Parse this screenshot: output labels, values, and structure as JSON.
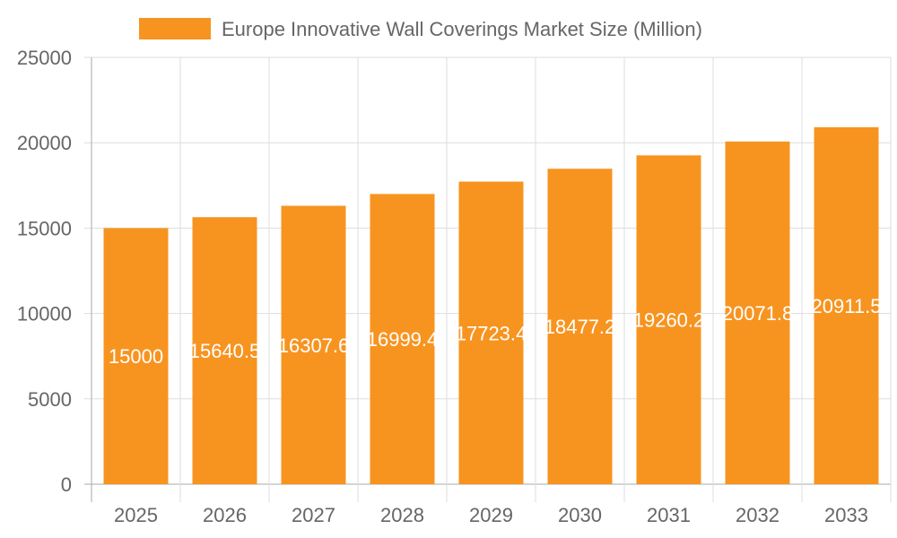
{
  "chart_data": {
    "type": "bar",
    "categories": [
      "2025",
      "2026",
      "2027",
      "2028",
      "2029",
      "2030",
      "2031",
      "2032",
      "2033"
    ],
    "series": [
      {
        "name": "Europe Innovative Wall Coverings Market Size (Million)",
        "values": [
          15000,
          15640.5,
          16307.6,
          16999.4,
          17723.4,
          18477.2,
          19260.2,
          20071.8,
          20911.5
        ]
      }
    ],
    "data_labels": [
      "15000",
      "15640.5",
      "16307.6",
      "16999.4",
      "17723.4",
      "18477.2",
      "19260.2",
      "20071.8",
      "20911.5"
    ],
    "yticks": [
      "0",
      "5000",
      "10000",
      "15000",
      "20000",
      "25000"
    ],
    "ylim": [
      0,
      25000
    ],
    "grid": true,
    "legend": "top",
    "colors": {
      "bar": "#f79420",
      "grid": "#dddddd",
      "axis": "#aaaaaa",
      "text": "#666666",
      "label": "#ffffff"
    }
  }
}
